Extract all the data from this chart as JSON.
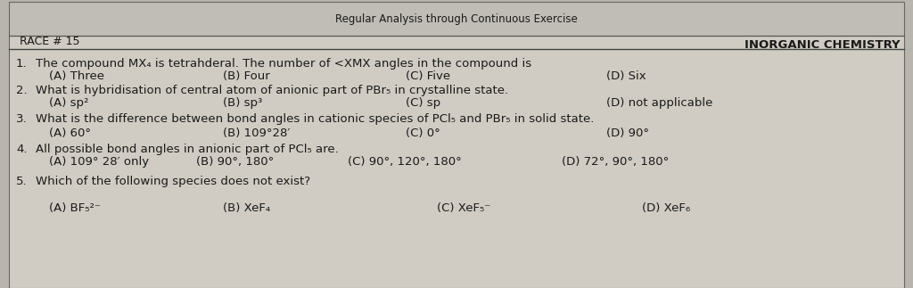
{
  "title_race": "RACE # 15",
  "title_subject": "INORGANIC CHEMISTRY",
  "header_text": "Regular Analysis through Continuous Exercise",
  "bg_color": "#b8b4ae",
  "page_bg": "#c8c4bc",
  "text_color": "#1a1a18",
  "questions": [
    {
      "num": "1.",
      "text": "The compound MX₄ is tetrahderal. The number of <XMX angles in the compound is",
      "options": [
        "(A) Three",
        "(B) Four",
        "(C) Five",
        "(D) Six"
      ]
    },
    {
      "num": "2.",
      "text": "What is hybridisation of central atom of anionic part of PBr₅ in crystalline state.",
      "options": [
        "(A) sp²",
        "(B) sp³",
        "(C) sp",
        "(D) not applicable"
      ]
    },
    {
      "num": "3.",
      "text": "What is the difference between bond angles in cationic species of PCl₅ and PBr₅ in solid state.",
      "options": [
        "(A) 60°",
        "(B) 109°28′",
        "(C) 0°",
        "(D) 90°"
      ]
    },
    {
      "num": "4.",
      "text": "All possible bond angles in anionic part of PCl₅ are.",
      "options": [
        "(A) 109° 28′ only",
        "(B) 90°, 180°",
        "(C) 90°, 120°, 180°",
        "(D) 72°, 90°, 180°"
      ]
    },
    {
      "num": "5.",
      "text": "Which of the following species does not exist?",
      "options": [
        "(A) BF₅²⁻",
        "(B) XeF₄",
        "(C) XeF₅⁻",
        "(D) XeF₆"
      ]
    }
  ],
  "q_fontsize": 9.5,
  "opt_fontsize": 9.5,
  "header_fontsize": 8.5,
  "race_fontsize": 9.0,
  "subject_fontsize": 9.5
}
